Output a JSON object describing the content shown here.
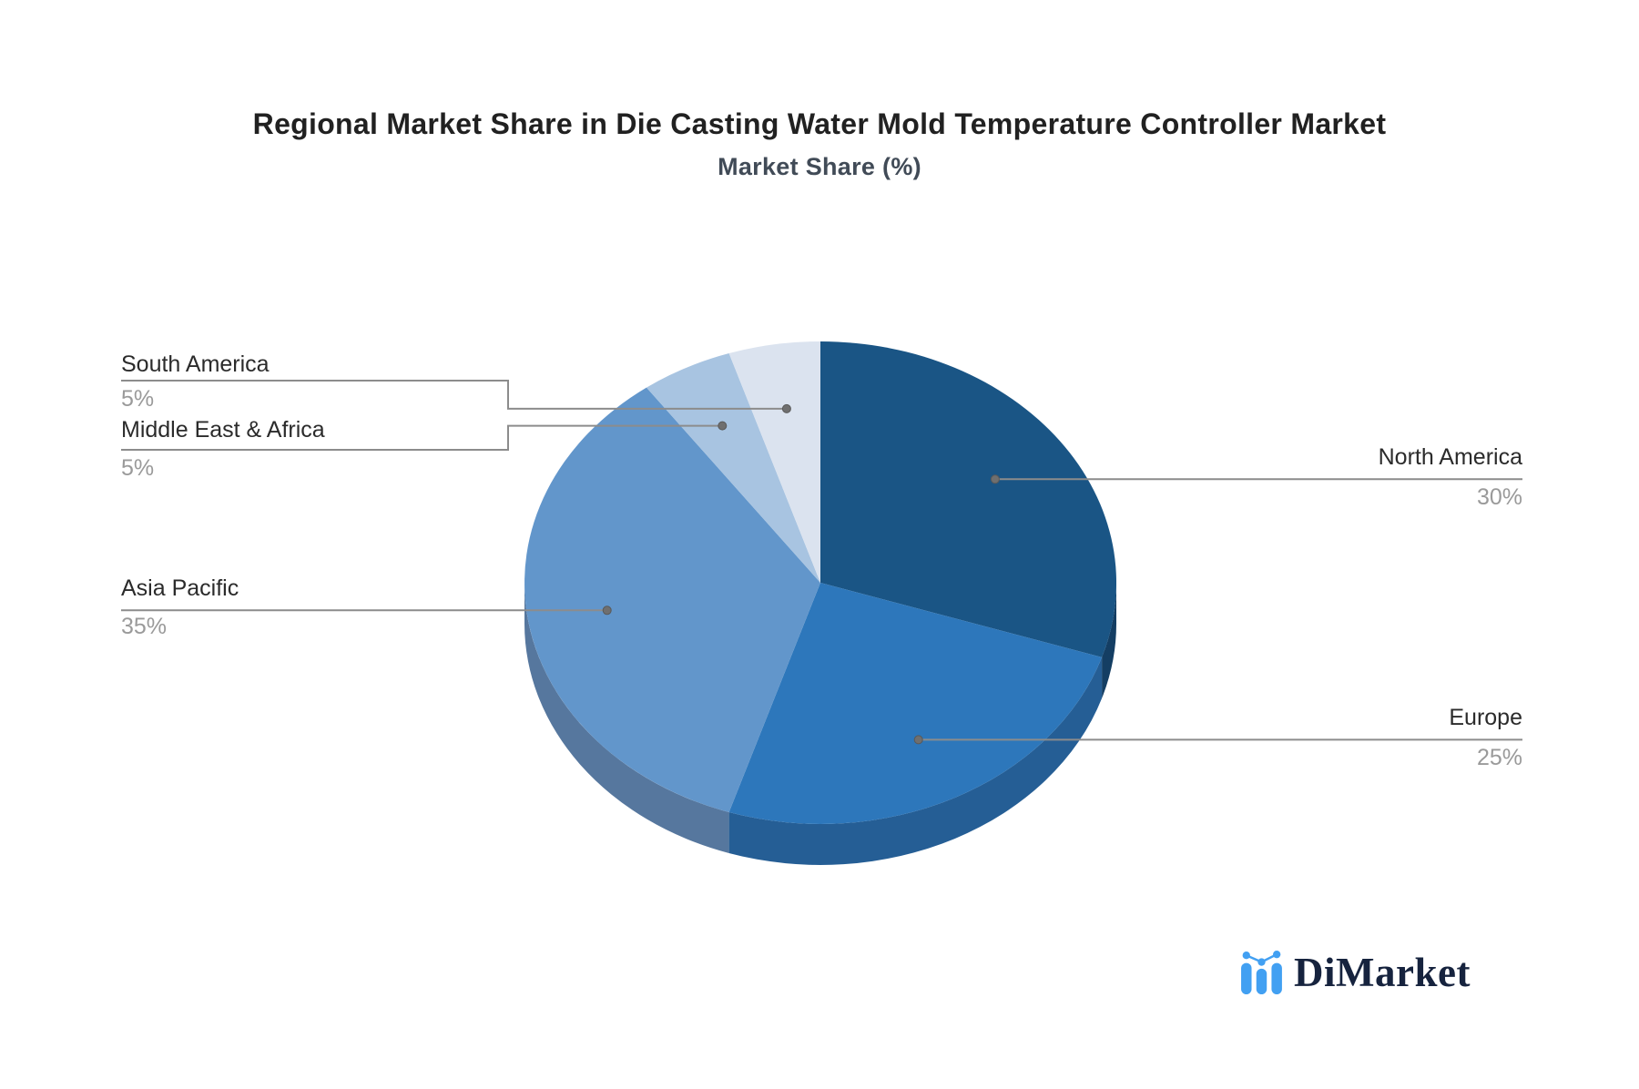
{
  "header": {
    "title": "Regional Market Share in Die Casting Water Mold Temperature Controller Market",
    "subtitle": "Market Share (%)"
  },
  "chart_data": {
    "type": "pie",
    "title": "Regional Market Share in Die Casting Water Mold Temperature Controller Market",
    "subtitle": "Market Share (%)",
    "unit": "%",
    "style": "3d-pie",
    "direction": "clockwise",
    "start_angle_deg": 0,
    "legend": "none",
    "series": [
      {
        "label": "North America",
        "value": 30,
        "pct_label": "30%",
        "color": "#1A5585",
        "side_color": "#143E63"
      },
      {
        "label": "Europe",
        "value": 25,
        "pct_label": "25%",
        "color": "#2D77BB",
        "side_color": "#255E95"
      },
      {
        "label": "Asia Pacific",
        "value": 35,
        "pct_label": "35%",
        "color": "#6296CB",
        "side_color": "#56779E"
      },
      {
        "label": "Middle East & Africa",
        "value": 5,
        "pct_label": "5%",
        "color": "#A8C4E1",
        "side_color": "#8FABC9"
      },
      {
        "label": "South America",
        "value": 5,
        "pct_label": "5%",
        "color": "#DBE3EF",
        "side_color": "#BEC9DB"
      }
    ],
    "leader_line_color": "#8C8C8C",
    "leader_dot_color": "#6F6F6F",
    "label_text_color": "#2B2B2B",
    "value_text_color": "#9A9A9A"
  },
  "logo": {
    "text": "DiMarket",
    "icon": "bar-line-chart-icon",
    "icon_color": "#42A0F2",
    "text_color": "#16233E"
  }
}
